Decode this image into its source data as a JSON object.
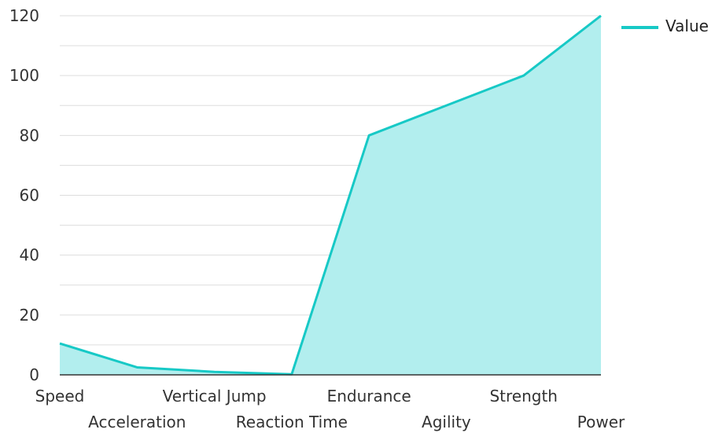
{
  "chart_data": {
    "type": "area",
    "categories": [
      "Speed",
      "Acceleration",
      "Vertical Jump",
      "Reaction Time",
      "Endurance",
      "Agility",
      "Strength",
      "Power"
    ],
    "series": [
      {
        "name": "Value",
        "values": [
          10.5,
          2.5,
          1.0,
          0.2,
          80,
          90,
          100,
          120
        ]
      }
    ],
    "ylim": [
      0,
      120
    ],
    "yticks": [
      0,
      20,
      40,
      60,
      80,
      100,
      120
    ],
    "grid": true,
    "legend": "top-right",
    "colors": {
      "line": "#17c9c6",
      "fill": "#b2eeee",
      "grid": "#dddddd",
      "axis": "#333333"
    }
  }
}
